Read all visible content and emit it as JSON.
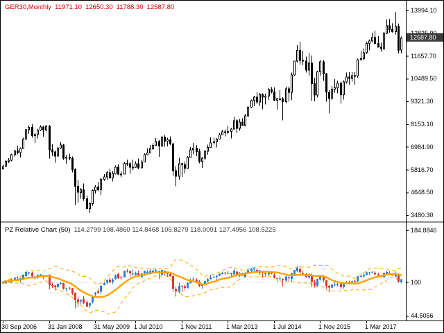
{
  "main_chart": {
    "symbol_label": "GER30,Monthly",
    "ohlc": {
      "open": "11971.10",
      "high": "12650.30",
      "low": "11788.30",
      "close": "12587.80"
    },
    "current_price": "12587.80",
    "price_axis_labels": [
      "13994.10",
      "12825.90",
      "11657.70",
      "10489.50",
      "9321.30",
      "8153.10",
      "6984.90",
      "5816.70",
      "4648.50",
      "3480.30"
    ]
  },
  "indicator": {
    "label": "PZ Relative Chart (50)",
    "values_line": "114.2799 108.4860 114.8468 106.8279 118.0091 127.4956 108.5225",
    "axis_labels": [
      "184.8846",
      "100",
      "44.5056"
    ]
  },
  "colors": {
    "ohlc_text": "#cc0000",
    "bull": "#ffffff",
    "bear": "#000000",
    "wick": "#000000",
    "ind_up": "#3080d0",
    "ind_down": "#e03636",
    "ma": "#ffa500",
    "band": "#ffa500",
    "level_line": "#c8c8c8",
    "badge_bg": "#3c3c3c",
    "badge_text": "#ffffff",
    "axis_text": "#000000",
    "separator": "#909090"
  },
  "chart_data": {
    "type": "candlestick",
    "title": "GER30,Monthly",
    "symbol": "GER30",
    "timeframe": "Monthly",
    "current_price": 12587.8,
    "last_bar_ohlc": [
      11971.1,
      12650.3,
      11788.3,
      12587.8
    ],
    "y_ticks": [
      13994.1,
      12825.9,
      11657.7,
      10489.5,
      9321.3,
      8153.1,
      6984.9,
      5816.7,
      4648.5,
      3480.3
    ],
    "y_range": [
      3200,
      14420
    ],
    "x_labels": [
      {
        "i": 0,
        "t": "30 Sep 2006"
      },
      {
        "i": 16,
        "t": "31 Jan 2008"
      },
      {
        "i": 32,
        "t": "31 May 2009"
      },
      {
        "i": 46,
        "t": "1 Jul 2010"
      },
      {
        "i": 62,
        "t": "1 Nov 2011"
      },
      {
        "i": 78,
        "t": "1 Mar 2013"
      },
      {
        "i": 94,
        "t": "1 Jul 2014"
      },
      {
        "i": 110,
        "t": "1 Nov 2015"
      },
      {
        "i": 126,
        "t": "1 Mar 2017"
      }
    ],
    "candles": [
      [
        5870,
        6090,
        5820,
        6004
      ],
      [
        6004,
        6320,
        5950,
        6269
      ],
      [
        6269,
        6400,
        6150,
        6309
      ],
      [
        6309,
        6640,
        6240,
        6597
      ],
      [
        6597,
        6840,
        6500,
        6789
      ],
      [
        6789,
        7040,
        6600,
        6715
      ],
      [
        6715,
        6960,
        6440,
        6917
      ],
      [
        6917,
        7450,
        6890,
        7409
      ],
      [
        7409,
        7900,
        7350,
        7883
      ],
      [
        7883,
        8080,
        7660,
        8007
      ],
      [
        8007,
        8150,
        7450,
        7584
      ],
      [
        7584,
        7700,
        7190,
        7638
      ],
      [
        7638,
        7920,
        7420,
        7861
      ],
      [
        7861,
        8090,
        7790,
        8019
      ],
      [
        8019,
        8060,
        7510,
        7870
      ],
      [
        7870,
        8120,
        7770,
        8067
      ],
      [
        8067,
        8110,
        6380,
        6851
      ],
      [
        6851,
        7110,
        6520,
        6748
      ],
      [
        6748,
        6790,
        6170,
        6534
      ],
      [
        6534,
        7000,
        6490,
        6948
      ],
      [
        6948,
        7230,
        6880,
        7096
      ],
      [
        7096,
        7140,
        6310,
        6418
      ],
      [
        6418,
        6580,
        6120,
        6479
      ],
      [
        6479,
        6640,
        6290,
        6422
      ],
      [
        6422,
        6490,
        5670,
        5831
      ],
      [
        5831,
        5890,
        4010,
        4987
      ],
      [
        4987,
        5290,
        4130,
        4669
      ],
      [
        4669,
        4880,
        4330,
        4810
      ],
      [
        4810,
        5110,
        4220,
        4338
      ],
      [
        4338,
        4490,
        3810,
        3843
      ],
      [
        3843,
        4130,
        3589,
        4085
      ],
      [
        4085,
        4800,
        3960,
        4769
      ],
      [
        4769,
        5010,
        4590,
        4940
      ],
      [
        4940,
        5180,
        4710,
        4809
      ],
      [
        4809,
        5390,
        4520,
        5332
      ],
      [
        5332,
        5580,
        5240,
        5464
      ],
      [
        5464,
        5760,
        5290,
        5675
      ],
      [
        5675,
        5870,
        5350,
        5414
      ],
      [
        5414,
        5740,
        5210,
        5626
      ],
      [
        5626,
        6030,
        5560,
        5957
      ],
      [
        5957,
        6090,
        5540,
        5609
      ],
      [
        5609,
        5740,
        5430,
        5598
      ],
      [
        5598,
        6210,
        5590,
        6154
      ],
      [
        6154,
        6340,
        6000,
        6136
      ],
      [
        6136,
        6190,
        5610,
        5964
      ],
      [
        5964,
        6330,
        5800,
        5966
      ],
      [
        5966,
        6250,
        5910,
        6147
      ],
      [
        6147,
        6390,
        5840,
        5925
      ],
      [
        5925,
        6310,
        5900,
        6229
      ],
      [
        6229,
        6660,
        6200,
        6601
      ],
      [
        6601,
        6900,
        6560,
        6688
      ],
      [
        6688,
        7090,
        6670,
        6914
      ],
      [
        6914,
        7180,
        6830,
        7077
      ],
      [
        7077,
        7440,
        7050,
        7272
      ],
      [
        7272,
        7340,
        6483,
        7041
      ],
      [
        7041,
        7520,
        6970,
        7514
      ],
      [
        7514,
        7600,
        7000,
        7293
      ],
      [
        7293,
        7460,
        7014,
        7376
      ],
      [
        7376,
        7520,
        7090,
        7158
      ],
      [
        7158,
        7190,
        5490,
        5785
      ],
      [
        5785,
        5990,
        4966,
        5502
      ],
      [
        5502,
        6430,
        5310,
        6141
      ],
      [
        6141,
        6180,
        5450,
        6088
      ],
      [
        6088,
        6230,
        5630,
        5898
      ],
      [
        5898,
        6520,
        5880,
        6459
      ],
      [
        6459,
        6970,
        6440,
        6856
      ],
      [
        6856,
        7190,
        6600,
        6947
      ],
      [
        6947,
        7080,
        6520,
        6761
      ],
      [
        6761,
        6880,
        6130,
        6264
      ],
      [
        6264,
        6480,
        5900,
        6416
      ],
      [
        6416,
        6820,
        6310,
        6772
      ],
      [
        6772,
        7100,
        6590,
        6971
      ],
      [
        6971,
        7480,
        6950,
        7216
      ],
      [
        7216,
        7450,
        7100,
        7260
      ],
      [
        7260,
        7440,
        6950,
        7406
      ],
      [
        7406,
        7680,
        7370,
        7612
      ],
      [
        7612,
        7870,
        7580,
        7776
      ],
      [
        7776,
        7880,
        7530,
        7741
      ],
      [
        7741,
        8070,
        7660,
        7795
      ],
      [
        7795,
        7960,
        7420,
        7914
      ],
      [
        7914,
        8550,
        7900,
        8349
      ],
      [
        8349,
        8400,
        7690,
        7959
      ],
      [
        7959,
        8410,
        7810,
        8276
      ],
      [
        8276,
        8460,
        8090,
        8103
      ],
      [
        8103,
        8690,
        8040,
        8594
      ],
      [
        8594,
        9070,
        8520,
        9034
      ],
      [
        9034,
        9420,
        8980,
        9405
      ],
      [
        9405,
        9620,
        9080,
        9552
      ],
      [
        9552,
        9800,
        9180,
        9306
      ],
      [
        9306,
        9750,
        9070,
        9692
      ],
      [
        9692,
        9730,
        8910,
        9556
      ],
      [
        9556,
        9720,
        9160,
        9603
      ],
      [
        9603,
        10000,
        9400,
        9943
      ],
      [
        9943,
        10050,
        9740,
        9833
      ],
      [
        9833,
        10030,
        9330,
        9407
      ],
      [
        9407,
        9480,
        8900,
        9470
      ],
      [
        9470,
        9890,
        9370,
        9474
      ],
      [
        9474,
        9540,
        8350,
        9327
      ],
      [
        9327,
        10090,
        9220,
        9981
      ],
      [
        9981,
        10090,
        9300,
        9806
      ],
      [
        9806,
        10810,
        9380,
        10694
      ],
      [
        10694,
        11410,
        10620,
        11402
      ],
      [
        11402,
        12220,
        11320,
        11966
      ],
      [
        11966,
        12390,
        11210,
        11454
      ],
      [
        11454,
        11920,
        11170,
        11414
      ],
      [
        11414,
        11630,
        10800,
        10945
      ],
      [
        10945,
        11800,
        10650,
        11309
      ],
      [
        11309,
        11670,
        9340,
        10259
      ],
      [
        10259,
        10530,
        9320,
        9660
      ],
      [
        9660,
        10890,
        9520,
        10850
      ],
      [
        10850,
        11430,
        10650,
        11382
      ],
      [
        11382,
        11440,
        10380,
        10743
      ],
      [
        10743,
        10790,
        9310,
        9798
      ],
      [
        9798,
        9900,
        8700,
        9495
      ],
      [
        9495,
        10110,
        9390,
        9966
      ],
      [
        9966,
        10470,
        9770,
        10039
      ],
      [
        10039,
        10370,
        9740,
        10263
      ],
      [
        10263,
        10340,
        9210,
        9680
      ],
      [
        9680,
        10390,
        9420,
        10337
      ],
      [
        10337,
        10810,
        10240,
        10593
      ],
      [
        10593,
        10830,
        10190,
        10511
      ],
      [
        10511,
        10830,
        10350,
        10665
      ],
      [
        10665,
        10830,
        10180,
        10640
      ],
      [
        10640,
        11510,
        10530,
        11481
      ],
      [
        11481,
        11900,
        11410,
        11535
      ],
      [
        11535,
        12040,
        11420,
        11834
      ],
      [
        11834,
        12390,
        11750,
        12313
      ],
      [
        12313,
        12490,
        11940,
        12438
      ],
      [
        12438,
        12840,
        12380,
        12615
      ],
      [
        12615,
        12950,
        12250,
        12325
      ],
      [
        12325,
        12680,
        12080,
        12118
      ],
      [
        12118,
        12340,
        11870,
        12056
      ],
      [
        12056,
        12880,
        11950,
        12829
      ],
      [
        12829,
        13530,
        12780,
        13230
      ],
      [
        13230,
        13560,
        12850,
        13024
      ],
      [
        13024,
        13340,
        12850,
        12918
      ],
      [
        12918,
        13920,
        12740,
        13189
      ],
      [
        13189,
        13310,
        11790,
        11971
      ],
      [
        11971.1,
        12650.3,
        11788.3,
        12587.8
      ]
    ],
    "indicator": {
      "name": "PZ Relative Chart",
      "period": 50,
      "last_values": [
        114.2799,
        108.486,
        114.8468,
        106.8279,
        118.0091,
        127.4956,
        108.5225
      ],
      "panel_y_ticks": [
        184.8846,
        100,
        44.5056
      ],
      "panel_y_range": [
        38,
        195
      ],
      "level": 100,
      "elements": [
        "relative-candles",
        "orange-ma-line",
        "dashed-upper-band",
        "dashed-lower-band",
        "level-100-line"
      ]
    }
  }
}
